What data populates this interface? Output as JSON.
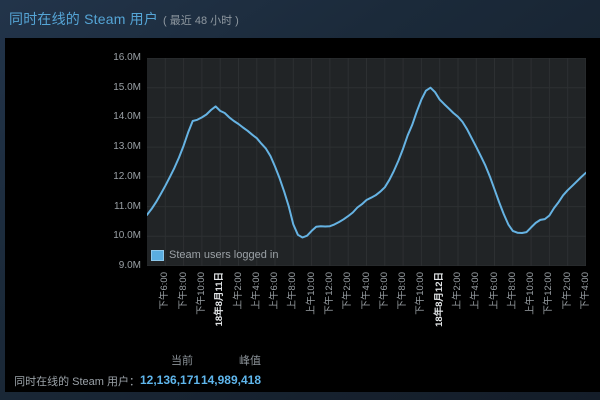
{
  "header": {
    "title": "同时在线的 Steam 用户",
    "subtitle": "( 最近 48 小时 )"
  },
  "stats": {
    "columns": {
      "current": "当前",
      "peak": "峰值"
    },
    "row_label": "同时在线的 Steam 用户：",
    "current_value": "12,136,171",
    "peak_value": "14,989,418"
  },
  "colors": {
    "accent_title": "#55a5d6",
    "value_blue": "#5fb6ec",
    "line_blue": "#66b3e3",
    "plot_background": "#212426",
    "panel_background": "#000000",
    "gridline": "#2d3032",
    "axis_text": "#9aa0a5",
    "date_text": "#e3e6e8"
  },
  "chart_data": {
    "type": "line",
    "title": "同时在线的 Steam 用户 ( 最近 48 小时 )",
    "legend": "Steam users logged in",
    "line_color": "#66b3e3",
    "grid": true,
    "y_axis_unit": "M",
    "y_min_millions": 9.0,
    "y_max_millions": 16.0,
    "y_ticks": [
      "16.0M",
      "15.0M",
      "14.0M",
      "13.0M",
      "12.0M",
      "11.0M",
      "10.0M",
      "9.0M"
    ],
    "x_range_hours": [
      0,
      48
    ],
    "x_tick_interval_hours": 2,
    "x_ticks": [
      {
        "label": "下午6:00",
        "date": false
      },
      {
        "label": "下午8:00",
        "date": false
      },
      {
        "label": "下午10:00",
        "date": false
      },
      {
        "label": "18年8月11日",
        "date": true
      },
      {
        "label": "上午2:00",
        "date": false
      },
      {
        "label": "上午4:00",
        "date": false
      },
      {
        "label": "上午6:00",
        "date": false
      },
      {
        "label": "上午8:00",
        "date": false
      },
      {
        "label": "上午10:00",
        "date": false
      },
      {
        "label": "下午12:00",
        "date": false
      },
      {
        "label": "下午2:00",
        "date": false
      },
      {
        "label": "下午4:00",
        "date": false
      },
      {
        "label": "下午6:00",
        "date": false
      },
      {
        "label": "下午8:00",
        "date": false
      },
      {
        "label": "下午10:00",
        "date": false
      },
      {
        "label": "18年8月12日",
        "date": true
      },
      {
        "label": "上午2:00",
        "date": false
      },
      {
        "label": "上午4:00",
        "date": false
      },
      {
        "label": "上午6:00",
        "date": false
      },
      {
        "label": "上午8:00",
        "date": false
      },
      {
        "label": "上午10:00",
        "date": false
      },
      {
        "label": "下午12:00",
        "date": false
      },
      {
        "label": "下午2:00",
        "date": false
      },
      {
        "label": "下午4:00",
        "date": false
      }
    ],
    "x_step_hours": 0.5,
    "values_millions": [
      10.72,
      10.92,
      11.15,
      11.42,
      11.7,
      12.0,
      12.3,
      12.65,
      13.05,
      13.5,
      13.88,
      13.92,
      14.0,
      14.1,
      14.25,
      14.37,
      14.22,
      14.15,
      14.0,
      13.88,
      13.78,
      13.66,
      13.55,
      13.42,
      13.3,
      13.12,
      12.95,
      12.7,
      12.35,
      11.95,
      11.5,
      11.0,
      10.4,
      10.05,
      9.96,
      10.02,
      10.18,
      10.32,
      10.34,
      10.33,
      10.34,
      10.4,
      10.48,
      10.57,
      10.68,
      10.8,
      10.97,
      11.08,
      11.22,
      11.3,
      11.38,
      11.5,
      11.65,
      11.9,
      12.2,
      12.55,
      12.95,
      13.4,
      13.75,
      14.2,
      14.6,
      14.9,
      15.0,
      14.85,
      14.6,
      14.45,
      14.3,
      14.15,
      14.02,
      13.85,
      13.6,
      13.3,
      13.0,
      12.7,
      12.38,
      12.0,
      11.58,
      11.15,
      10.75,
      10.4,
      10.18,
      10.12,
      10.11,
      10.14,
      10.3,
      10.45,
      10.55,
      10.58,
      10.7,
      10.95,
      11.15,
      11.38,
      11.55,
      11.7,
      11.85,
      12.0,
      12.14
    ],
    "current_users": 12136171,
    "peak_users": 14989418
  }
}
